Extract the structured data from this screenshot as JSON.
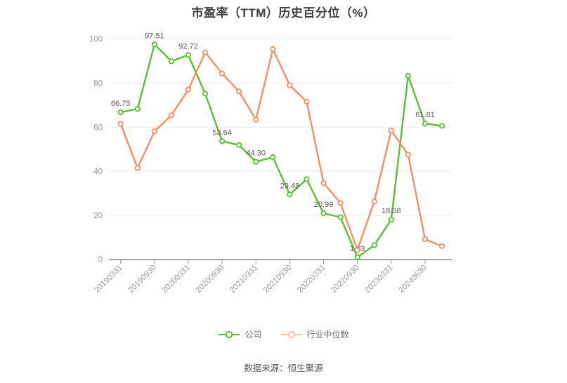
{
  "page": {
    "background": "#ffffff"
  },
  "chart_data": {
    "type": "line",
    "title": "市盈率（TTM）历史百分位（%）",
    "footer": "数据来源：恒生聚源",
    "ylim": [
      0,
      100
    ],
    "yticks": [
      0,
      20,
      40,
      60,
      80,
      100
    ],
    "grid": true,
    "legend_position": "bottom",
    "num_points": 20,
    "x_tick_labels": [
      "20190331",
      "20190930",
      "20200331",
      "20200930",
      "20210331",
      "20210930",
      "20220331",
      "20220930",
      "20230331",
      "20240630"
    ],
    "x_tick_point_indices": [
      0,
      2,
      4,
      6,
      8,
      10,
      12,
      14,
      16,
      18
    ],
    "series": [
      {
        "name": "公司",
        "color": "#57c22d",
        "legend_opacity": 1,
        "values": [
          66.75,
          68.3,
          97.51,
          89.9,
          92.72,
          75.2,
          53.64,
          51.9,
          44.3,
          46.4,
          29.48,
          36.4,
          20.99,
          19.2,
          1.03,
          6.5,
          18.08,
          83.3,
          61.61,
          60.6
        ],
        "point_labels": {
          "0": "66.75",
          "2": "97.51",
          "4": "92.72",
          "6": "53.64",
          "8": "44.30",
          "10": "29.48",
          "12": "20.99",
          "14": "1.03",
          "16": "18.08",
          "18": "61.61"
        }
      },
      {
        "name": "行业中位数",
        "color": "#f98d60",
        "legend_opacity": 0.55,
        "values": [
          61.5,
          41.5,
          58.1,
          65.4,
          77.0,
          93.9,
          84.3,
          76.2,
          63.4,
          95.4,
          79.0,
          71.6,
          34.7,
          25.6,
          4.3,
          26.3,
          58.5,
          47.5,
          9.2,
          6.1
        ],
        "point_labels": {}
      }
    ],
    "colors": {
      "gridline": "#e9eef5",
      "axis_line": "#9aa0a6",
      "tick_text": "#999999",
      "value_label": "#595959"
    }
  }
}
